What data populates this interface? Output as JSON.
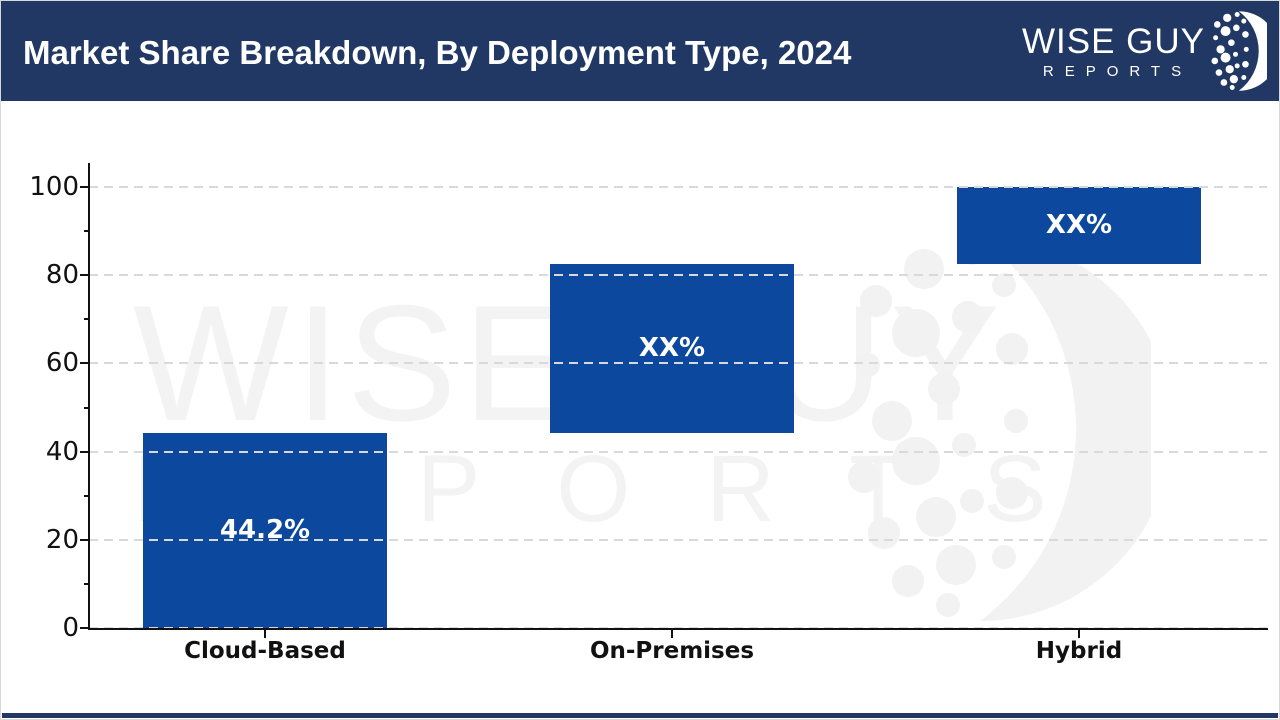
{
  "header": {
    "title": "Market Share Breakdown, By Deployment Type, 2024",
    "logo": {
      "line1": "WISE GUY",
      "line2": "REPORTS",
      "icon": "dotted-face-profile"
    }
  },
  "watermark": {
    "line1": "WISE GUY",
    "line2": "REPORTS",
    "icon": "dotted-face-profile"
  },
  "colors": {
    "header_bg": "#213864",
    "footer_bg": "#213864",
    "bar_blue": "#0b489e",
    "grid_gray": "#d9d9d9",
    "axis_black": "#111111",
    "watermark_gray": "#f3f3f3",
    "value_label_white": "#ffffff"
  },
  "chart_data": {
    "type": "bar",
    "bar_style": "floating-waterfall",
    "title": "Market Share Breakdown, By Deployment Type, 2024",
    "categories": [
      "Cloud-Based",
      "On-Premises",
      "Hybrid"
    ],
    "segments": [
      {
        "category": "Cloud-Based",
        "start": 0,
        "end": 44.2,
        "label": "44.2%"
      },
      {
        "category": "On-Premises",
        "start": 44.2,
        "end": 82.5,
        "label": "XX%"
      },
      {
        "category": "Hybrid",
        "start": 82.5,
        "end": 100,
        "label": "XX%"
      }
    ],
    "xlabel": "",
    "ylabel": "",
    "ylim": [
      0,
      100
    ],
    "yticks": [
      0,
      20,
      40,
      60,
      80,
      100
    ],
    "yticks_minor": [
      10,
      30,
      50,
      70,
      90
    ],
    "grid": "dashed-horizontal-over-bars",
    "legend": "none",
    "bar_color": "#0b489e",
    "value_label_color": "#ffffff"
  }
}
